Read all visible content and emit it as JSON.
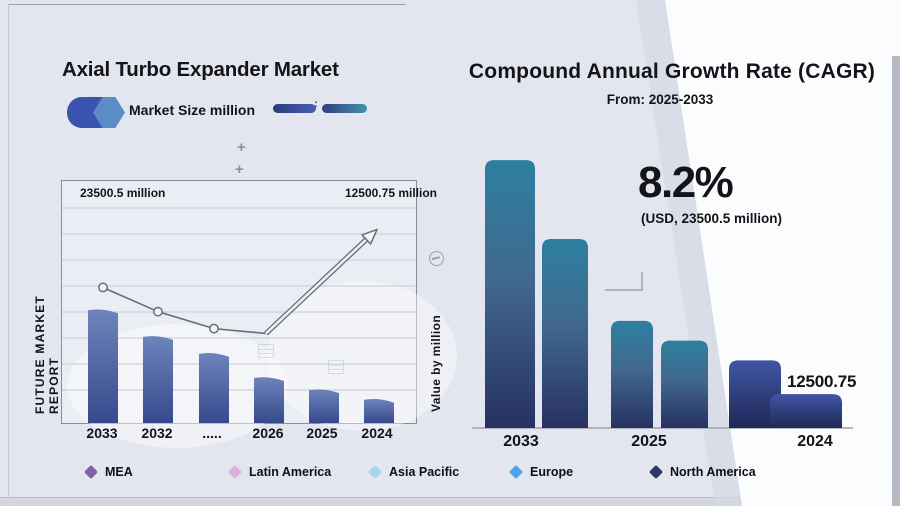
{
  "colors": {
    "background": "#e3e6ef",
    "panel_white": "#fbfcfe",
    "line_gray": "#686d76",
    "bar_blue_top": "#6e84bb",
    "bar_blue_bottom": "#36498d",
    "teal_bar_top": "#2d80a0",
    "teal_bar_bottom": "#273162",
    "navy_bar_top": "#4056a5",
    "navy_bar_bottom": "#1e2956"
  },
  "left_panel": {
    "title": "Axial Turbo Expander Market",
    "legend_label": "Market Size million",
    "ratio_colon": ":",
    "plus_marks": [
      "+",
      "+"
    ],
    "annotation_top_left": "23500.5 million",
    "annotation_top_right": "12500.75 million",
    "watermark_vertical": "FUTURE MARKET REPORT",
    "ylabel_vertical": "Value by million"
  },
  "right_panel": {
    "title": "Compound Annual Growth Rate (CAGR)",
    "subtitle": "From: 2025-2033",
    "cagr_value": "8.2%",
    "cagr_detail": "(USD, 23500.5 million)",
    "bar_annotation": "12500.75"
  },
  "bottom_legend": {
    "items": [
      {
        "label": "MEA",
        "color": "#7e62aa"
      },
      {
        "label": "Latin America",
        "color": "#d9b4da"
      },
      {
        "label": "Asia Pacific",
        "color": "#a9d5e8"
      },
      {
        "label": "Europe",
        "color": "#4da3e8"
      },
      {
        "label": "North America",
        "color": "#2e3b66"
      }
    ]
  },
  "chart_data": [
    {
      "type": "bar",
      "variant": "bars-with-declining-line-and-growth-arrow",
      "title": "Axial Turbo Expander Market",
      "ylabel": "Value by million",
      "categories": [
        "2033",
        "2032",
        ".....",
        "2026",
        "2025",
        "2024"
      ],
      "values_relative": [
        0.47,
        0.36,
        0.29,
        0.19,
        0.14,
        0.1
      ],
      "axis_numeric_labels": "none",
      "line_values_relative": [
        0.56,
        0.46,
        0.39,
        0.37
      ],
      "arrow_end": {
        "x_rel": 0.89,
        "y_rel": 0.8
      },
      "annotations": {
        "top_left": "23500.5 million",
        "top_right": "12500.75 million"
      },
      "gridlines": true
    },
    {
      "type": "bar",
      "variant": "grouped-rounded-step",
      "title": "Compound Annual Growth Rate (CAGR)",
      "subtitle": "From: 2025-2033",
      "categories": [
        "2033",
        "2025",
        "2024"
      ],
      "series": [
        {
          "name": "front-bar",
          "relative_heights": [
            0.95,
            0.38,
            0.24
          ]
        },
        {
          "name": "back-bar",
          "relative_heights": [
            0.67,
            0.31,
            0.12
          ]
        }
      ],
      "annotations": {
        "value_2024": "12500.75",
        "cagr": "8.2%",
        "cagr_detail": "(USD, 23500.5 million)"
      },
      "gridlines": false,
      "legend_position": "bottom"
    }
  ]
}
